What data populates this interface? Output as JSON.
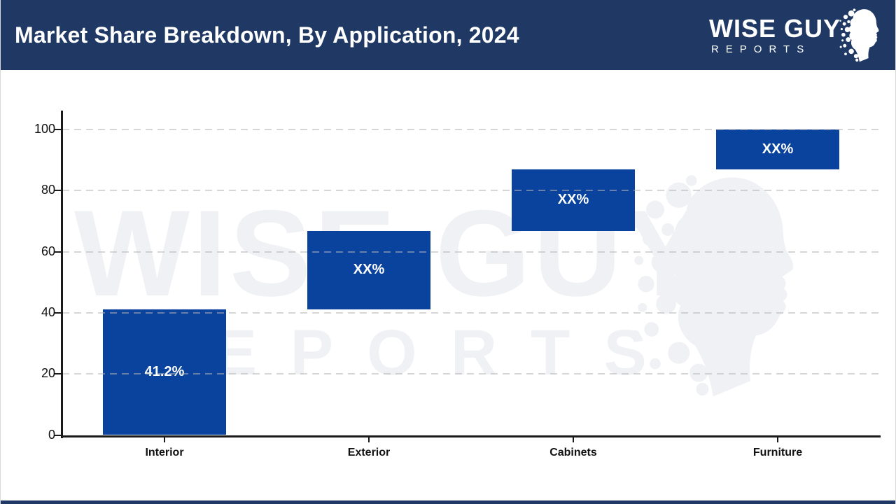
{
  "header": {
    "title": "Market Share Breakdown, By Application, 2024",
    "logo": {
      "line1": "WISE GUY",
      "line2": "REPORTS"
    }
  },
  "watermark": {
    "line1": "WISE GUY",
    "line2": "REPORTS"
  },
  "colors": {
    "header_bg": "#1f3864",
    "footer_bg": "#1f3864",
    "bar": "#09439e",
    "bar_label_text": "#ffffff",
    "grid": "#d9d9d9",
    "axis": "#1a1a1a",
    "tick_text": "#111111",
    "watermark": "#f0f1f4"
  },
  "chart_data": {
    "type": "bar",
    "subtype": "waterfall",
    "title": "Market Share Breakdown, By Application, 2024",
    "categories": [
      "Interior",
      "Exterior",
      "Cabinets",
      "Furniture"
    ],
    "series": [
      {
        "name": "Market Share (%)",
        "segments": [
          {
            "category": "Interior",
            "start": 0,
            "end": 41.2,
            "label": "41.2%"
          },
          {
            "category": "Exterior",
            "start": 41.2,
            "end": 66.8,
            "label": "XX%"
          },
          {
            "category": "Cabinets",
            "start": 66.8,
            "end": 87.0,
            "label": "XX%"
          },
          {
            "category": "Furniture",
            "start": 87.0,
            "end": 100,
            "label": "XX%"
          }
        ]
      }
    ],
    "xlabel": "",
    "ylabel": "",
    "ylim": [
      0,
      100
    ],
    "yticks": [
      0,
      20,
      40,
      60,
      80,
      100
    ],
    "grid": "dashed-horizontal",
    "legend": "none"
  }
}
